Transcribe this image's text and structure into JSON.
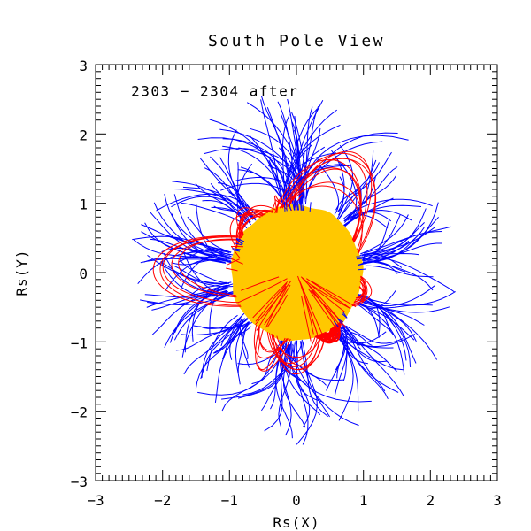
{
  "chart_data": {
    "type": "line",
    "title": "South Pole View",
    "annotation": "2303 − 2304 after",
    "xlabel": "Rs(X)",
    "ylabel": "Rs(Y)",
    "xlim": [
      -3,
      3
    ],
    "ylim": [
      -3,
      3
    ],
    "x_ticks": [
      "−3",
      "−2",
      "−1",
      "0",
      "1",
      "2",
      "3"
    ],
    "x_tick_values": [
      -3,
      -2,
      -1,
      0,
      1,
      2,
      3
    ],
    "y_ticks": [
      "−3",
      "−2",
      "−1",
      "0",
      "1",
      "2",
      "3"
    ],
    "y_tick_values": [
      -3,
      -2,
      -1,
      0,
      1,
      2,
      3
    ],
    "minor_tick_step": 0.1,
    "grid": false,
    "legend": null,
    "frame_color": "#000000",
    "background_color": "#ffffff",
    "annotation_pos": [
      -2.47,
      2.55
    ],
    "sun": {
      "center": [
        0,
        0
      ],
      "radius": 0.98,
      "color": "#FFC800"
    },
    "field_lines": {
      "open_color": "#0000FF",
      "closed_color": "#FF0000",
      "seed": 7,
      "open_bundles": [
        {
          "name": "north-fan",
          "foot_deg": 92,
          "foot_spread": 20,
          "end_spread": 85,
          "count": 46,
          "r_min": 1.55,
          "r_max": 2.6,
          "bend": 1.6,
          "wave": 1.5
        },
        {
          "name": "upper-left",
          "foot_deg": 133,
          "foot_spread": 14,
          "end_spread": 50,
          "count": 20,
          "r_min": 1.5,
          "r_max": 2.3,
          "bend": 1.5,
          "wave": 2.0
        },
        {
          "name": "west-upper",
          "foot_deg": 168,
          "foot_spread": 10,
          "end_spread": 42,
          "count": 24,
          "r_min": 1.6,
          "r_max": 2.55,
          "bend": 1.7,
          "wave": 2.0
        },
        {
          "name": "west-lower",
          "foot_deg": 193,
          "foot_spread": 12,
          "end_spread": 46,
          "count": 24,
          "r_min": 1.5,
          "r_max": 2.45,
          "bend": 1.6,
          "wave": 2.0
        },
        {
          "name": "lower-left",
          "foot_deg": 222,
          "foot_spread": 14,
          "end_spread": 44,
          "count": 20,
          "r_min": 1.4,
          "r_max": 2.3,
          "bend": 1.4,
          "wave": 3.0
        },
        {
          "name": "south-fan",
          "foot_deg": 265,
          "foot_spread": 22,
          "end_spread": 70,
          "count": 28,
          "r_min": 1.5,
          "r_max": 2.5,
          "bend": 1.3,
          "wave": 6.0
        },
        {
          "name": "lower-right",
          "foot_deg": 308,
          "foot_spread": 14,
          "end_spread": 50,
          "count": 22,
          "r_min": 1.4,
          "r_max": 2.4,
          "bend": 1.5,
          "wave": 3.5
        },
        {
          "name": "east-lower",
          "foot_deg": 338,
          "foot_spread": 10,
          "end_spread": 40,
          "count": 18,
          "r_min": 1.5,
          "r_max": 2.45,
          "bend": 1.6,
          "wave": 2.0
        },
        {
          "name": "east-upper",
          "foot_deg": 10,
          "foot_spread": 12,
          "end_spread": 45,
          "count": 22,
          "r_min": 1.5,
          "r_max": 2.5,
          "bend": 1.6,
          "wave": 2.0
        },
        {
          "name": "upper-right",
          "foot_deg": 50,
          "foot_spread": 16,
          "end_spread": 55,
          "count": 20,
          "r_min": 1.5,
          "r_max": 2.35,
          "bend": 1.5,
          "wave": 2.5
        }
      ],
      "closed_loops": [
        {
          "name": "big-east",
          "a_deg": 103,
          "a_spread": 14,
          "b_deg": 25,
          "b_spread": 18,
          "apex_min": 1.45,
          "apex_max": 2.1,
          "count": 9,
          "width": 1
        },
        {
          "name": "big-west",
          "a_deg": 150,
          "a_spread": 10,
          "b_deg": 206,
          "b_spread": 12,
          "apex_min": 1.6,
          "apex_max": 2.3,
          "count": 5,
          "width": 1
        },
        {
          "name": "south",
          "a_deg": 248,
          "a_spread": 10,
          "b_deg": 292,
          "b_spread": 12,
          "apex_min": 1.25,
          "apex_max": 1.85,
          "count": 7,
          "width": 1
        },
        {
          "name": "small-northwest",
          "a_deg": 116,
          "a_spread": 16,
          "b_deg": 152,
          "b_spread": 14,
          "apex_min": 1.06,
          "apex_max": 1.3,
          "count": 12,
          "width": 1
        },
        {
          "name": "east-edge",
          "a_deg": -8,
          "a_spread": 10,
          "b_deg": -26,
          "b_spread": 10,
          "apex_min": 1.04,
          "apex_max": 1.22,
          "count": 9,
          "width": 1
        },
        {
          "name": "southeast-blob",
          "a_deg": -52,
          "a_spread": 12,
          "b_deg": -68,
          "b_spread": 10,
          "apex_min": 1.02,
          "apex_max": 1.18,
          "count": 16,
          "width": 2
        },
        {
          "name": "southwest-small",
          "a_deg": 235,
          "a_spread": 10,
          "b_deg": 262,
          "b_spread": 10,
          "apex_min": 1.2,
          "apex_max": 1.55,
          "count": 5,
          "width": 1
        }
      ],
      "surface_rays": [
        {
          "name": "southeast-fan",
          "ang_min": -82,
          "ang_max": -25,
          "r0_min": 0.05,
          "r0_max": 0.35,
          "r1_min": 0.9,
          "r1_max": 1.1,
          "count": 14
        },
        {
          "name": "southwest-fan",
          "ang_min": 195,
          "ang_max": 243,
          "r0_min": 0.12,
          "r0_max": 0.4,
          "r1_min": 0.85,
          "r1_max": 1.05,
          "count": 9
        },
        {
          "name": "north-spikes",
          "ang_min": 80,
          "ang_max": 112,
          "r0_min": 0.88,
          "r0_max": 0.96,
          "r1_min": 1.05,
          "r1_max": 1.16,
          "count": 9
        },
        {
          "name": "west-edge",
          "ang_min": 150,
          "ang_max": 178,
          "r0_min": 0.8,
          "r0_max": 0.92,
          "r1_min": 1.0,
          "r1_max": 1.06,
          "count": 5
        }
      ],
      "footpoint_ticks": [
        {
          "name": "north-footpoints",
          "ang_min": 76,
          "ang_max": 104,
          "r0": 0.9,
          "r1": 1.04,
          "count": 12
        },
        {
          "name": "northwest-footpoints",
          "ang_min": 146,
          "ang_max": 162,
          "r0": 0.9,
          "r1": 1.02,
          "count": 6
        },
        {
          "name": "east-footpoints",
          "ang_min": 2,
          "ang_max": 20,
          "r0": 0.92,
          "r1": 1.04,
          "count": 6
        },
        {
          "name": "southeast-footpoints",
          "ang_min": -60,
          "ang_max": -40,
          "r0": 0.9,
          "r1": 1.0,
          "count": 5
        }
      ]
    }
  }
}
